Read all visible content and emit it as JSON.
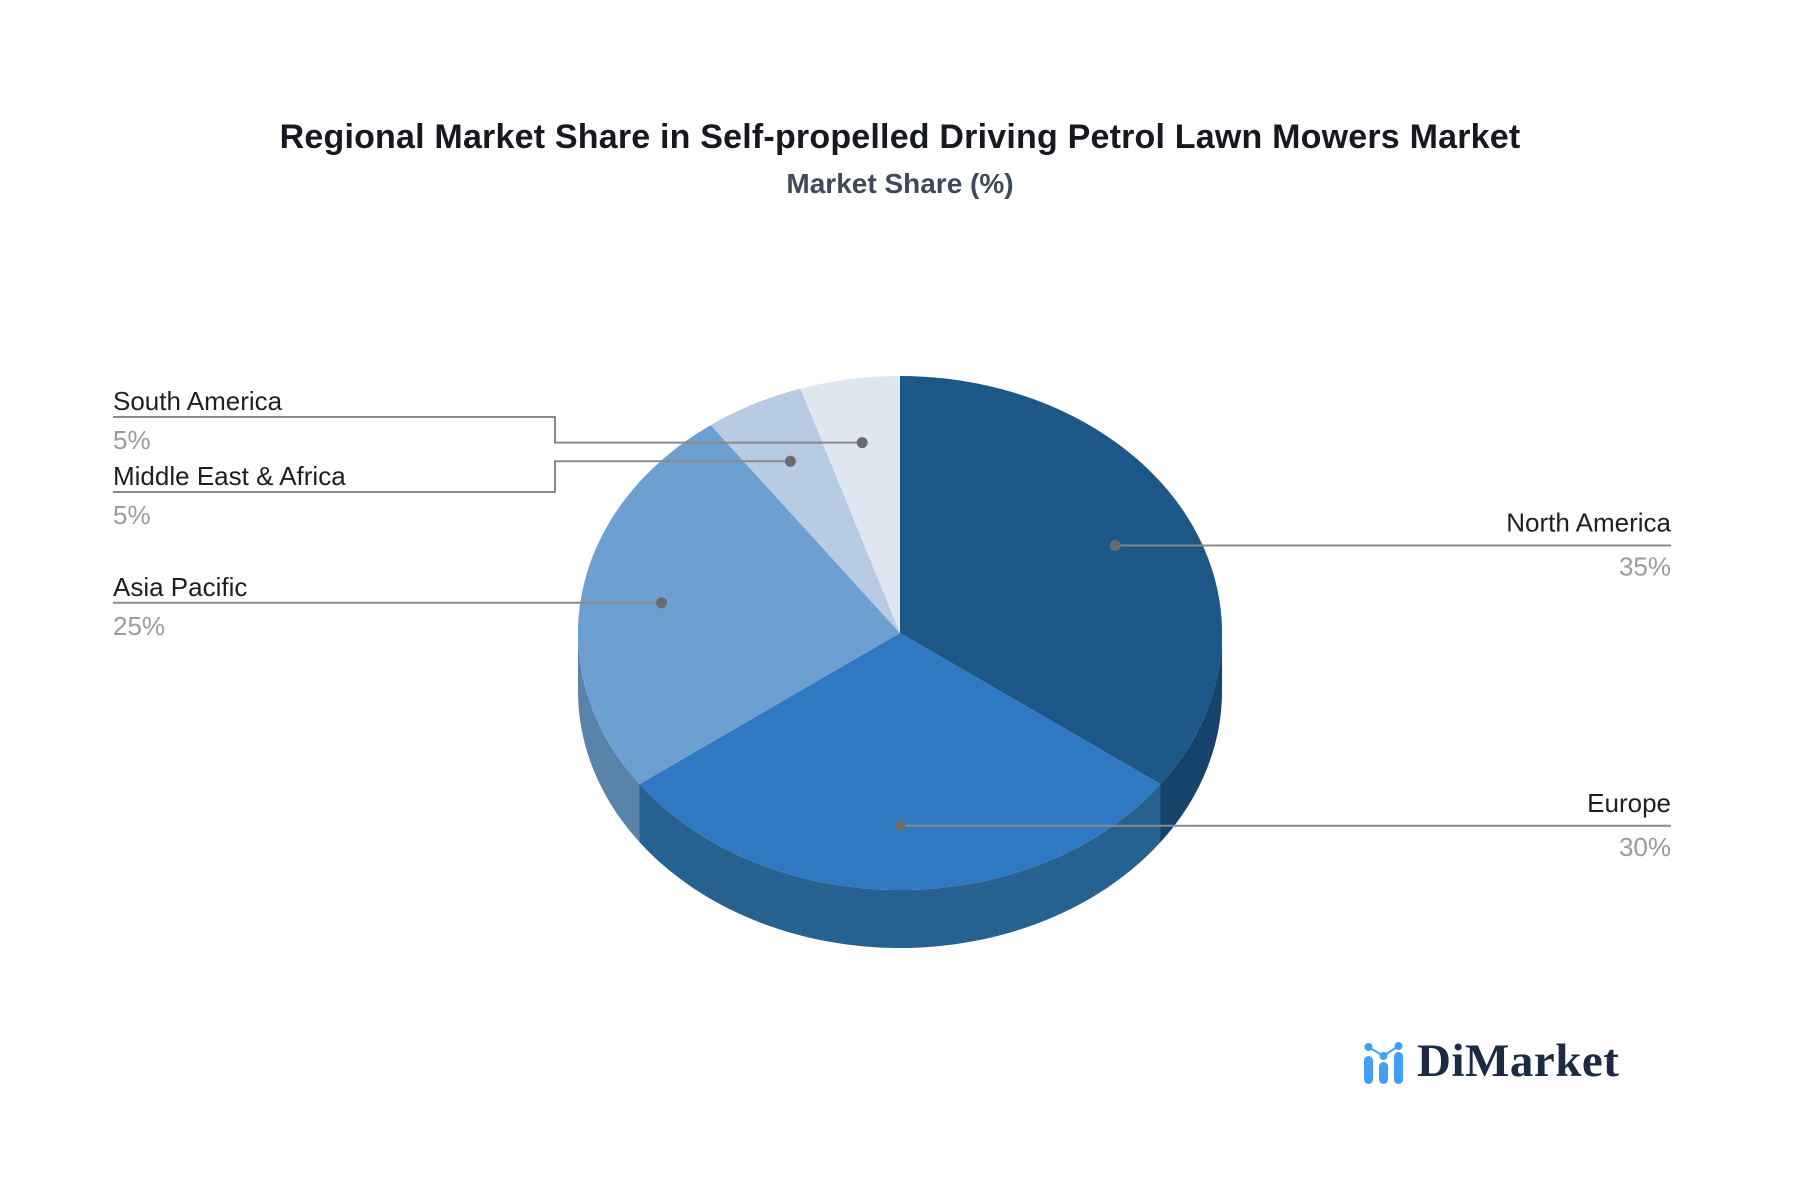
{
  "header": {
    "title": "Regional Market Share in Self-propelled Driving Petrol Lawn Mowers Market",
    "subtitle": "Market Share (%)"
  },
  "chart_data": {
    "type": "pie",
    "title": "Regional Market Share in Self-propelled Driving Petrol Lawn Mowers Market",
    "subtitle": "Market Share (%)",
    "unit": "%",
    "style": "3d-pie",
    "start_angle_deg": 0,
    "direction": "clockwise",
    "slices": [
      {
        "label": "North America",
        "value": 35,
        "color": "#1d5787",
        "side_color": "#16436b",
        "callout_side": "right"
      },
      {
        "label": "Europe",
        "value": 30,
        "color": "#2e79c2",
        "side_color": "#27618f",
        "callout_side": "right"
      },
      {
        "label": "Asia Pacific",
        "value": 25,
        "color": "#6d9fd1",
        "side_color": "#5a83a9",
        "callout_side": "left"
      },
      {
        "label": "Middle East & Africa",
        "value": 5,
        "color": "#b7cbe2",
        "callout_side": "left",
        "label_line_y": 492
      },
      {
        "label": "South America",
        "value": 5,
        "color": "#dee6f0",
        "callout_side": "left",
        "label_line_y": 417
      }
    ],
    "label_text_color": "#1f1f1f",
    "percent_text_color": "#9b9b9b",
    "leader_line_color": "#8a8a8a",
    "leader_dot_color": "#6b6b6b"
  },
  "logo": {
    "text": "DiMarket",
    "icon": "bar-chart-icon",
    "icon_color": "#41a0f6",
    "text_color": "#1c2a44"
  }
}
